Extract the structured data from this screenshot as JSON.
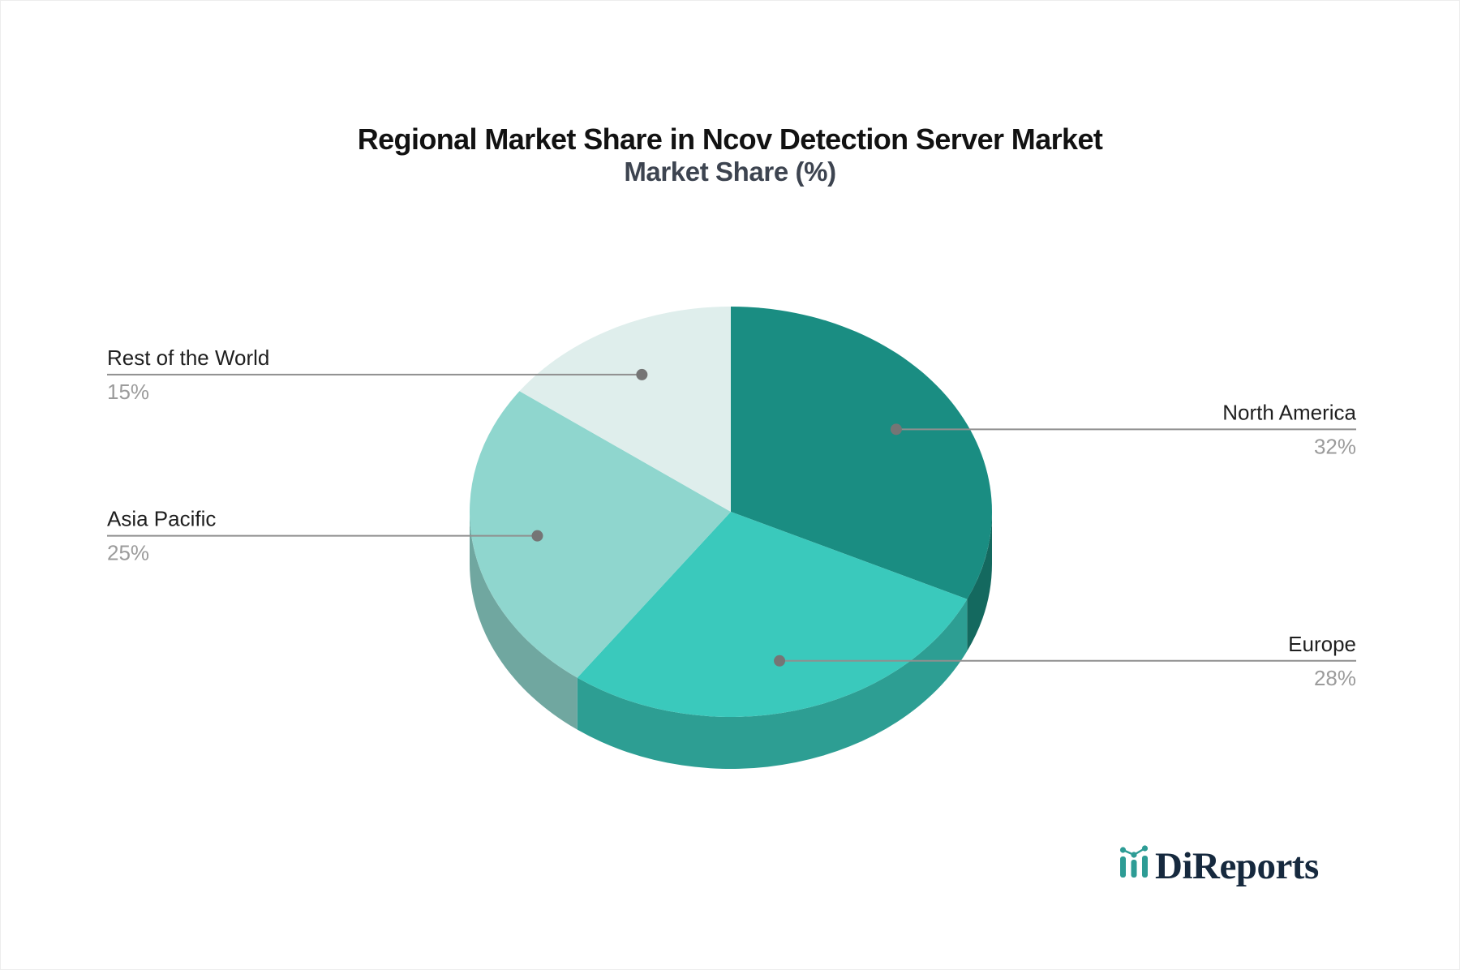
{
  "chart_data": {
    "type": "pie",
    "style": "3d",
    "title": "Regional Market Share in Ncov Detection Server Market",
    "subtitle": "Market Share (%)",
    "unit": "%",
    "start_angle_deg": 0,
    "direction": "clockwise",
    "legend_position": "none",
    "slices": [
      {
        "label": "North America",
        "value": 32,
        "display": "32%",
        "color": "#1A8D82",
        "side_color": "#14695F",
        "label_side": "right"
      },
      {
        "label": "Europe",
        "value": 28,
        "display": "28%",
        "color": "#3AC9BC",
        "side_color": "#2D9E93",
        "label_side": "right"
      },
      {
        "label": "Asia Pacific",
        "value": 25,
        "display": "25%",
        "color": "#8FD6CE",
        "side_color": "#70A7A0",
        "label_side": "left"
      },
      {
        "label": "Rest of the World",
        "value": 15,
        "display": "15%",
        "color": "#DFEEEC",
        "side_color": "#AFC9C5",
        "label_side": "left"
      }
    ],
    "label_color": "#1F1F1F",
    "value_color": "#9B9B9B",
    "leader_line_color": "#8F8F8F",
    "leader_dot_color": "#757575",
    "title_color": "#121212",
    "subtitle_color": "#3D4450"
  },
  "branding": {
    "logo_text": "DiReports",
    "logo_icon": "bar-chart-trend-icon",
    "logo_text_color": "#16293E",
    "logo_accent_color": "#2D9C95"
  }
}
